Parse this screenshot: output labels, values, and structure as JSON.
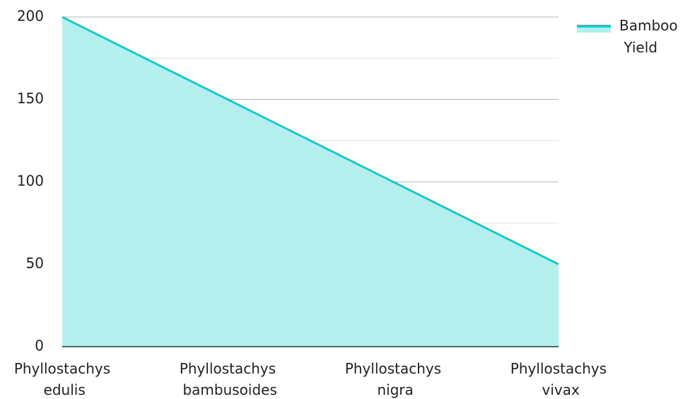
{
  "chart_data": {
    "type": "area",
    "categories": [
      "Phyllostachys edulis",
      "Phyllostachys bambusoides",
      "Phyllostachys nigra",
      "Phyllostachys vivax"
    ],
    "series": [
      {
        "name": "Bamboo Yield",
        "color": "#1ec8c8",
        "fill": "#b3efed",
        "values": [
          200,
          150,
          100,
          50
        ]
      }
    ],
    "ylim": [
      0,
      200
    ],
    "yticks": [
      0,
      50,
      100,
      150,
      200
    ],
    "minor_yticks": [
      25,
      75,
      125,
      175
    ],
    "grid": true,
    "legend": "top-right"
  }
}
